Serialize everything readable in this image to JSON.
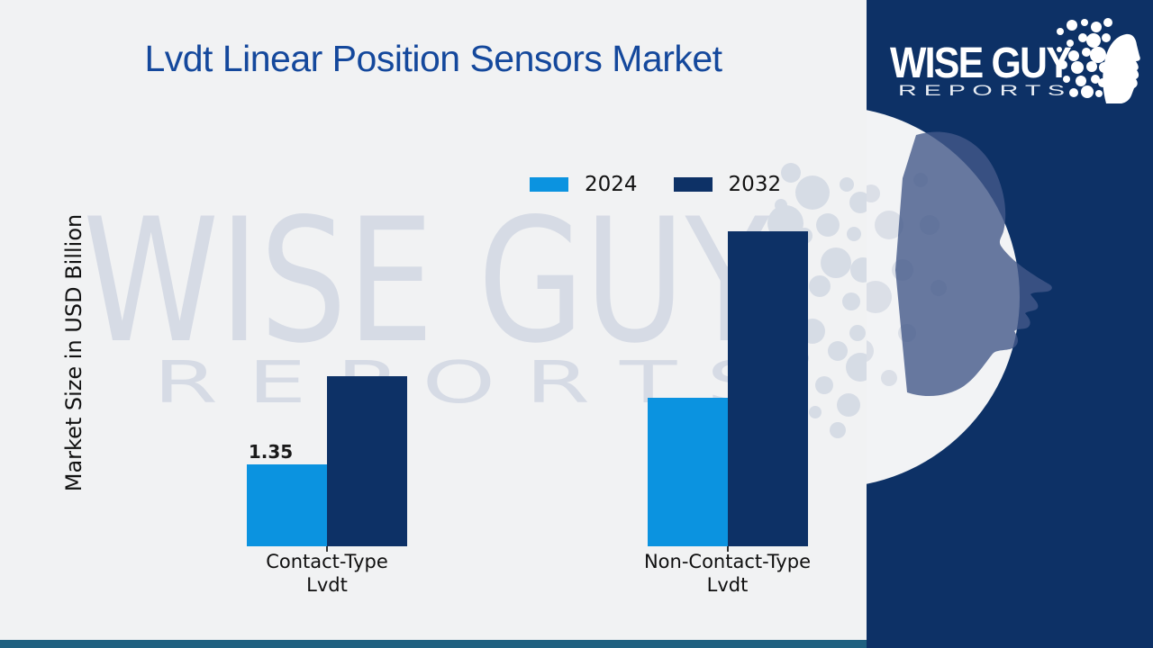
{
  "page": {
    "title": "Lvdt Linear Position Sensors Market"
  },
  "watermark": {
    "line1": "WISE GUY",
    "line2": "R E P O R T S"
  },
  "logo": {
    "line1": "WISE GUY",
    "line2": "R E P O R T S",
    "icon": "wiseguy-dotted-face-icon"
  },
  "colors": {
    "background": "#f1f2f3",
    "panel_navy": "#0d3166",
    "bar_2024_blue": "#0b93e0",
    "bar_2032_navy": "#0d3166",
    "title_blue": "#14489c",
    "bottom_accent_teal": "#1f6080",
    "watermark_gray": "#d6dbe5"
  },
  "chart_data": {
    "type": "bar",
    "title": "Lvdt Linear Position Sensors Market",
    "xlabel": "",
    "ylabel": "Market Size in USD Billion",
    "categories": [
      "Contact-Type Lvdt",
      "Non-Contact-Type Lvdt"
    ],
    "categories_display": [
      [
        "Contact-Type",
        "Lvdt"
      ],
      [
        "Non-Contact-Type",
        "Lvdt"
      ]
    ],
    "series": [
      {
        "name": "2024",
        "color": "#0b93e0",
        "values": [
          1.35,
          2.45
        ]
      },
      {
        "name": "2032",
        "color": "#0d3166",
        "values": [
          2.8,
          5.2
        ]
      }
    ],
    "bar_labels": [
      {
        "series": 0,
        "category": 0,
        "text": "1.35"
      }
    ],
    "ylim": [
      0,
      5.6
    ],
    "grid": false,
    "y_axis_ticks_visible": false,
    "legend_position": "top-center"
  }
}
